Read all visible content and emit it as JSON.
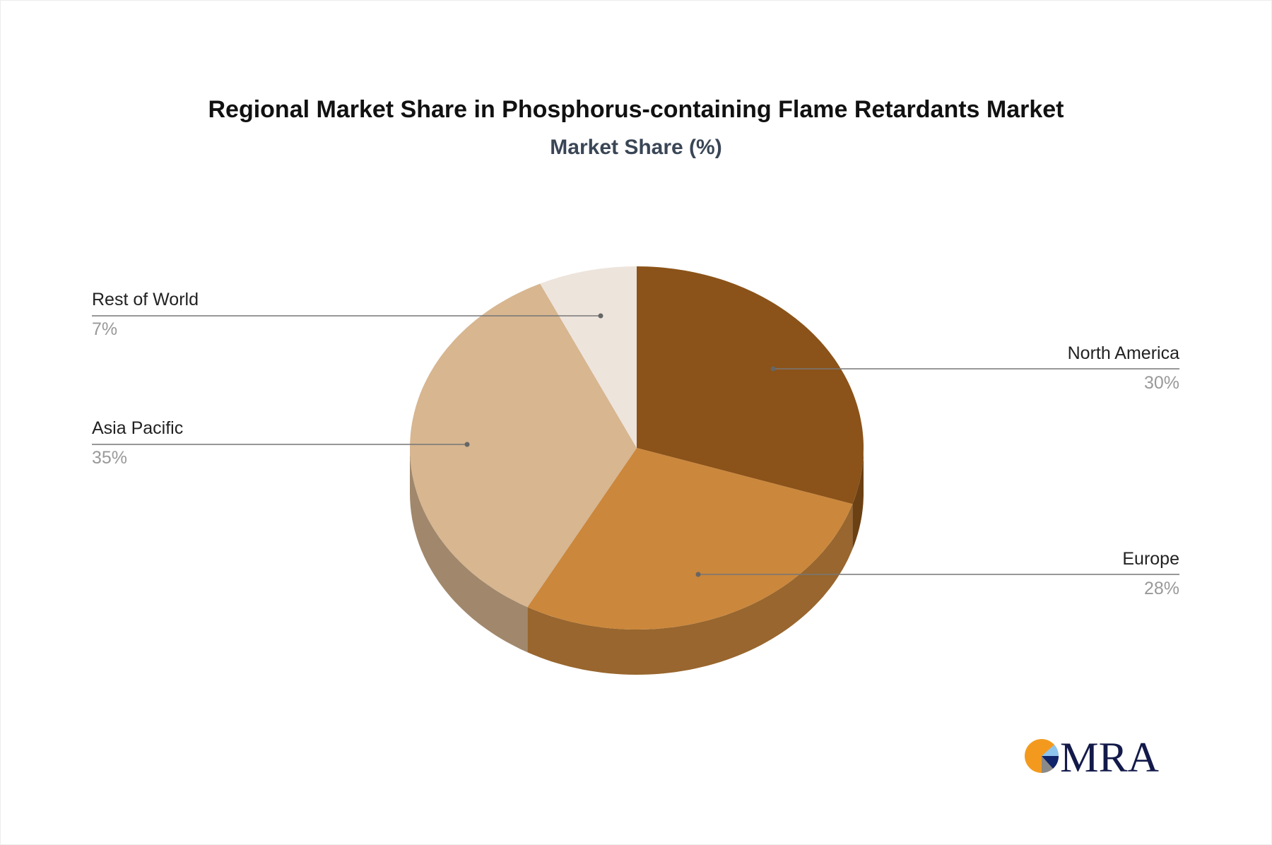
{
  "chart_data": {
    "type": "pie",
    "title": "Regional Market Share in Phosphorus-containing Flame Retardants Market",
    "subtitle": "Market Share (%)",
    "style": "3d",
    "slices": [
      {
        "label": "North America",
        "value": 30,
        "display": "30%",
        "color": "#8B5319",
        "side_color": "#6B4013"
      },
      {
        "label": "Europe",
        "value": 28,
        "display": "28%",
        "color": "#CB873C",
        "side_color": "#98662E"
      },
      {
        "label": "Asia Pacific",
        "value": 35,
        "display": "35%",
        "color": "#D7B690",
        "side_color": "#A1886C"
      },
      {
        "label": "Rest of World",
        "value": 7,
        "display": "7%",
        "color": "#EDE4DC",
        "side_color": "#BDB4AC"
      }
    ]
  },
  "logo": {
    "text": "MRA"
  }
}
